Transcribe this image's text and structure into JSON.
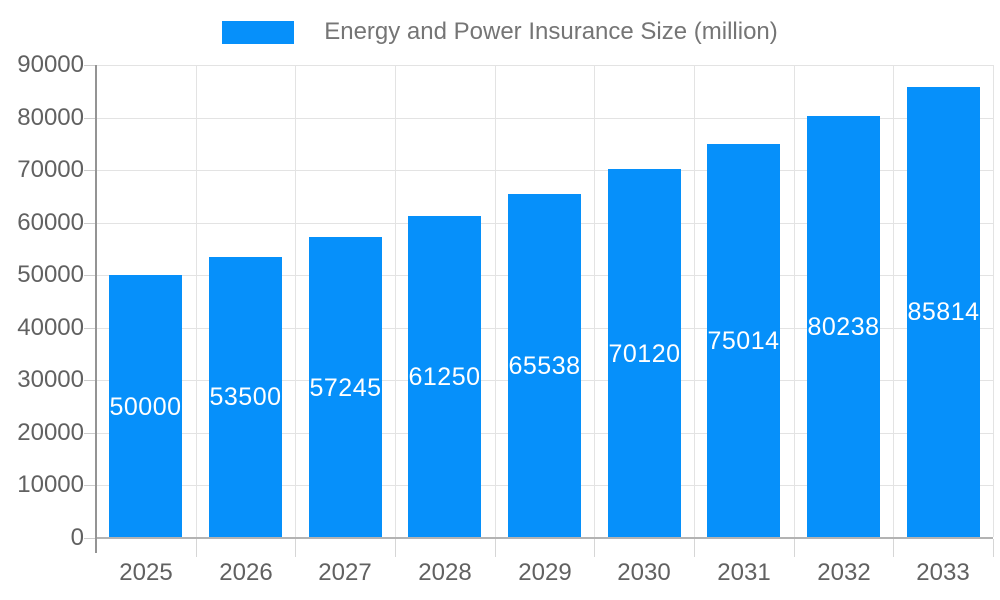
{
  "legend": {
    "label": "Energy and Power Insurance Size (million)"
  },
  "chart_data": {
    "type": "bar",
    "title": "",
    "categories": [
      "2025",
      "2026",
      "2027",
      "2028",
      "2029",
      "2030",
      "2031",
      "2032",
      "2033"
    ],
    "series": [
      {
        "name": "Energy and Power Insurance Size (million)",
        "values": [
          50000,
          53500,
          57245,
          61250,
          65538,
          70120,
          75014,
          80238,
          85814
        ]
      }
    ],
    "value_labels": [
      "50000",
      "53500",
      "57245",
      "61250",
      "65538",
      "70120",
      "75014",
      "80238",
      "85814"
    ],
    "xlabel": "",
    "ylabel": "",
    "ylim": [
      0,
      90000
    ],
    "yticks": [
      0,
      10000,
      20000,
      30000,
      40000,
      50000,
      60000,
      70000,
      80000,
      90000
    ],
    "grid": true,
    "legend_position": "top"
  },
  "colors": {
    "bar": "#0690fa",
    "axis_text": "#616161",
    "legend_text": "#757575",
    "value_label_text": "#ffffff",
    "gridline": "#e3e3e3",
    "baseline": "#b3b3b3",
    "axis_line": "#949494",
    "tick": "#cccccc",
    "background": "#ffffff"
  }
}
